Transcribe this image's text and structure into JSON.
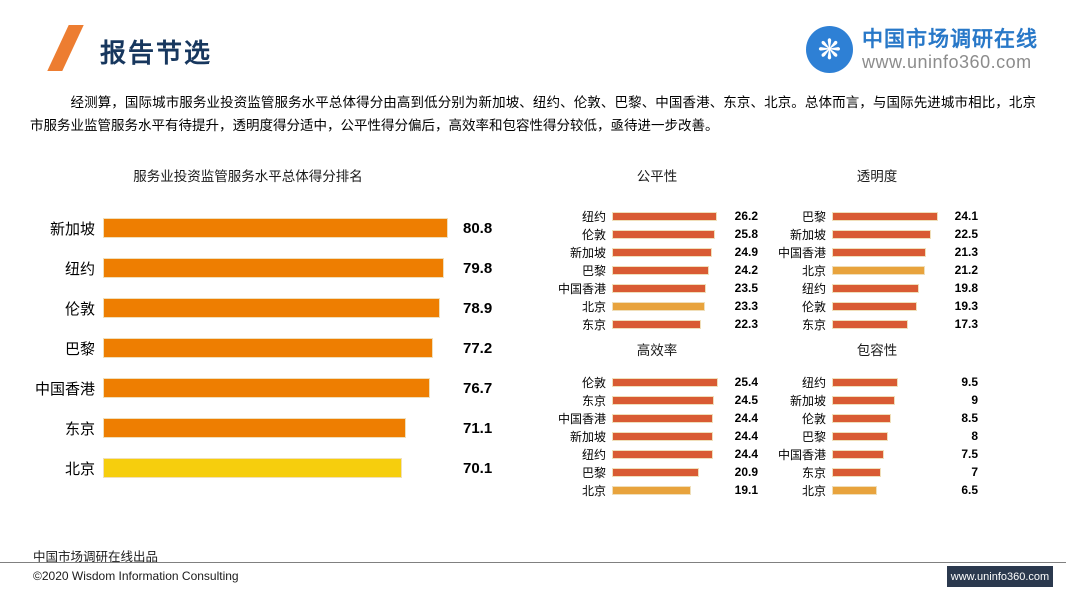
{
  "header": {
    "title": "报告节选",
    "logo": {
      "icon": "snowflake-icon",
      "brand": "中国市场调研在线",
      "url": "www.uninfo360.com"
    }
  },
  "intro_paragraph": "经测算，国际城市服务业投资监管服务水平总体得分由高到低分别为新加坡、纽约、伦敦、巴黎、中国香港、东京、北京。总体而言，与国际先进城市相比，北京市服务业监管服务水平有待提升，透明度得分适中，公平性得分偏后，高效率和包容性得分较低，亟待进一步改善。",
  "chart_data": [
    {
      "type": "bar",
      "orientation": "horizontal",
      "title": "服务业投资监管服务水平总体得分排名",
      "categories": [
        "新加坡",
        "纽约",
        "伦敦",
        "巴黎",
        "中国香港",
        "东京",
        "北京"
      ],
      "values": [
        80.8,
        79.8,
        78.9,
        77.2,
        76.7,
        71.1,
        70.1
      ],
      "xlim": [
        0,
        82
      ],
      "highlight_category": "北京",
      "colors": {
        "bar": "#EE7E01",
        "highlight": "#F6CE0D"
      },
      "legend": "none",
      "grid": "off"
    },
    {
      "type": "bar",
      "orientation": "horizontal",
      "title": "公平性",
      "categories": [
        "纽约",
        "伦敦",
        "新加坡",
        "巴黎",
        "中国香港",
        "北京",
        "东京"
      ],
      "values": [
        26.2,
        25.8,
        24.9,
        24.2,
        23.5,
        23.3,
        22.3
      ],
      "xlim": [
        0,
        27
      ],
      "highlight_category": "北京",
      "colors": {
        "bar": "#D95B33",
        "highlight": "#E8A33D"
      },
      "legend": "none",
      "grid": "off"
    },
    {
      "type": "bar",
      "orientation": "horizontal",
      "title": "透明度",
      "categories": [
        "巴黎",
        "新加坡",
        "中国香港",
        "北京",
        "纽约",
        "伦敦",
        "东京"
      ],
      "values": [
        24.1,
        22.5,
        21.3,
        21.2,
        19.8,
        19.3,
        17.3
      ],
      "xlim": [
        0,
        24.5
      ],
      "highlight_category": "北京",
      "colors": {
        "bar": "#D95B33",
        "highlight": "#E8A33D"
      },
      "legend": "none",
      "grid": "off"
    },
    {
      "type": "bar",
      "orientation": "horizontal",
      "title": "高效率",
      "categories": [
        "伦敦",
        "东京",
        "中国香港",
        "新加坡",
        "纽约",
        "巴黎",
        "北京"
      ],
      "values": [
        25.4,
        24.5,
        24.4,
        24.4,
        24.4,
        20.9,
        19.1
      ],
      "xlim": [
        0,
        26
      ],
      "highlight_category": "北京",
      "colors": {
        "bar": "#D95B33",
        "highlight": "#E8A33D"
      },
      "legend": "none",
      "grid": "off"
    },
    {
      "type": "bar",
      "orientation": "horizontal",
      "title": "包容性",
      "categories": [
        "纽约",
        "新加坡",
        "伦敦",
        "巴黎",
        "中国香港",
        "东京",
        "北京"
      ],
      "values": [
        9.5,
        9,
        8.5,
        8,
        7.5,
        7,
        6.5
      ],
      "xlim": [
        0,
        15.5
      ],
      "highlight_category": "北京",
      "colors": {
        "bar": "#D95B33",
        "highlight": "#E8A33D"
      },
      "legend": "none",
      "grid": "off"
    }
  ],
  "footer": {
    "producer": "中国市场调研在线出品",
    "copyright": "©2020 Wisdom Information Consulting",
    "url_badge": "www.uninfo360.com"
  },
  "colors": {
    "accent_orange": "#ED7D31",
    "title_navy": "#17375E",
    "brand_blue": "#2878C8",
    "logo_circle_blue": "#2E80D5",
    "bar_orange": "#EE7E01",
    "bar_yellow": "#F6CE0D",
    "bar_red_orange": "#D95B33",
    "bar_gold": "#E8A33D",
    "badge_navy": "#2B394E",
    "url_gray": "#8C8C8C"
  },
  "icons": {
    "slash": "slash-accent-icon",
    "logo_glyph": "❋"
  }
}
